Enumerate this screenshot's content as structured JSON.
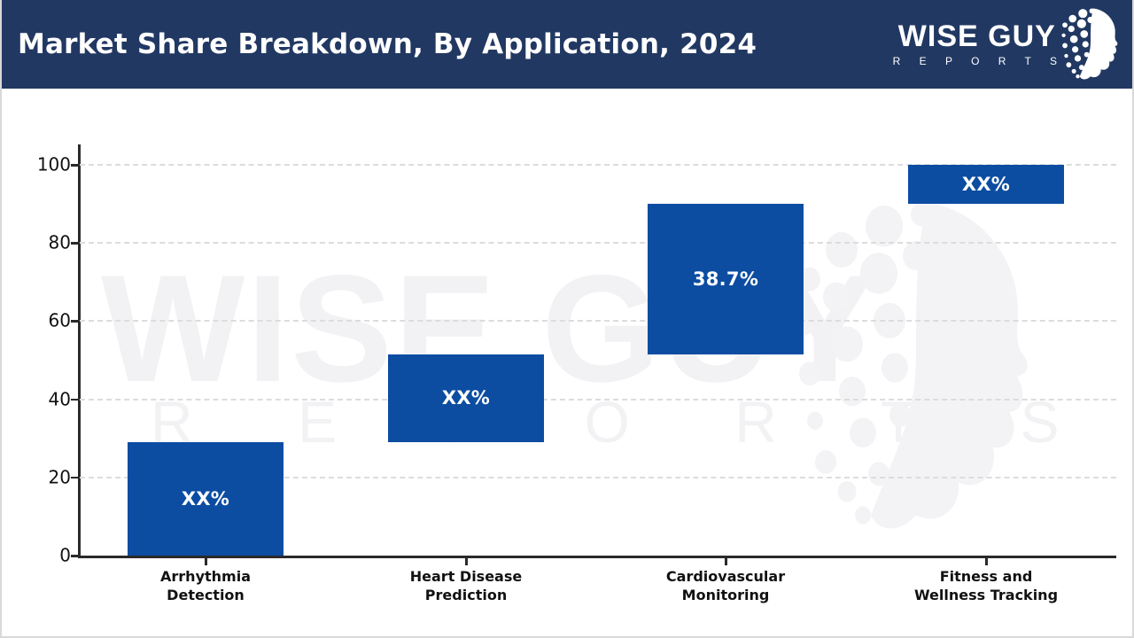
{
  "header": {
    "title": "Market Share Breakdown, By Application, 2024",
    "bg_color": "#213862",
    "logo": {
      "line1": "WISE GUY",
      "line2": "R E P O R T S"
    }
  },
  "watermark": {
    "line1": "WISE GUY",
    "line2": "R E P O R T S"
  },
  "chart_data": {
    "type": "bar",
    "subtype": "waterfall-floating-segments",
    "title": "Market Share Breakdown, By Application, 2024",
    "categories": [
      "Arrhythmia\nDetection",
      "Heart Disease\nPrediction",
      "Cardiovascular\nMonitoring",
      "Fitness and\nWellness Tracking"
    ],
    "bars": [
      {
        "label": "XX%",
        "start": 0,
        "end": 29.1
      },
      {
        "label": "XX%",
        "start": 29.1,
        "end": 51.4
      },
      {
        "label": "38.7%",
        "start": 51.4,
        "end": 90.1
      },
      {
        "label": "XX%",
        "start": 90.1,
        "end": 100
      }
    ],
    "yticks": [
      0,
      20,
      40,
      60,
      80,
      100
    ],
    "ylim": [
      0,
      105
    ],
    "xlabel": "",
    "ylabel": "",
    "grid": "horizontal-dashed",
    "legend": "none",
    "bar_color": "#0c4da2",
    "bar_label_color": "#ffffff",
    "axis_color": "#2a2a2a"
  }
}
